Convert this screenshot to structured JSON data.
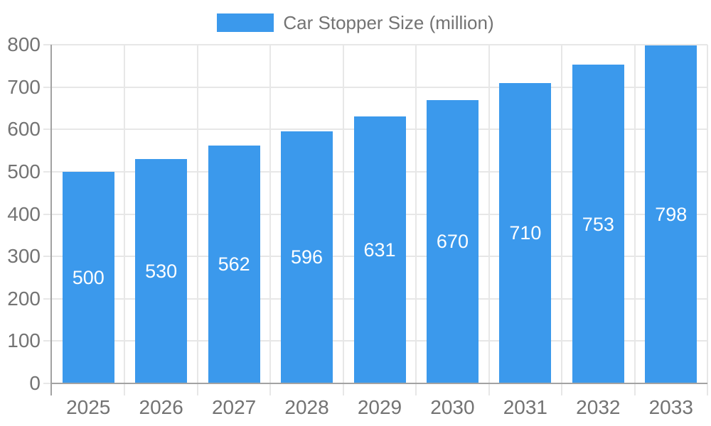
{
  "legend": {
    "items": [
      {
        "label": "Car Stopper Size (million)"
      }
    ]
  },
  "colors": {
    "bar": "#3B99EC",
    "grid": "#E7E7E7",
    "axis": "#A2A2A2",
    "text": "#737373",
    "value_text": "#FFFFFF",
    "background": "#FFFFFF"
  },
  "chart_data": {
    "type": "bar",
    "title": "",
    "categories": [
      "2025",
      "2026",
      "2027",
      "2028",
      "2029",
      "2030",
      "2031",
      "2032",
      "2033"
    ],
    "series": [
      {
        "name": "Car Stopper Size (million)",
        "values": [
          500,
          530,
          562,
          596,
          631,
          670,
          710,
          753,
          798
        ]
      }
    ],
    "xlabel": "",
    "ylabel": "",
    "ylim": [
      0,
      800
    ],
    "yticks": [
      0,
      100,
      200,
      300,
      400,
      500,
      600,
      700,
      800
    ],
    "grid": true,
    "legend_position": "top-center",
    "value_labels": "inside-center"
  }
}
